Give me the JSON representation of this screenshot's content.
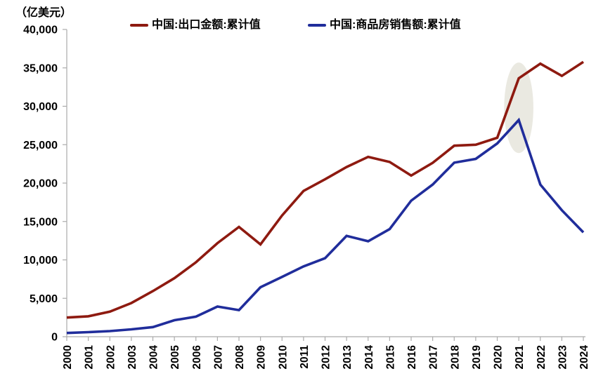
{
  "chart_data": {
    "type": "line",
    "unit_label": "（亿美元）",
    "x": [
      2000,
      2001,
      2002,
      2003,
      2004,
      2005,
      2006,
      2007,
      2008,
      2009,
      2010,
      2011,
      2012,
      2013,
      2014,
      2015,
      2016,
      2017,
      2018,
      2019,
      2020,
      2021,
      2022,
      2023,
      2024
    ],
    "series": [
      {
        "name": "中国:出口金额:累计值",
        "color": "#8E1A10",
        "values": [
          2492,
          2661,
          3256,
          4382,
          5933,
          7620,
          9690,
          12180,
          14290,
          12020,
          15780,
          18980,
          20490,
          22090,
          23420,
          22750,
          20980,
          22630,
          24870,
          25000,
          25900,
          33640,
          35540,
          33950,
          35770
        ]
      },
      {
        "name": "中国:商品房销售额:累计值",
        "color": "#202D9B",
        "values": [
          480,
          590,
          730,
          960,
          1250,
          2150,
          2610,
          3930,
          3460,
          6440,
          7790,
          9150,
          10220,
          13130,
          12430,
          14010,
          17710,
          19810,
          22660,
          23150,
          25160,
          28210,
          19810,
          16470,
          13590
        ]
      }
    ],
    "ylim": [
      0,
      40000
    ],
    "yticks": [
      0,
      5000,
      10000,
      15000,
      20000,
      25000,
      30000,
      35000,
      40000
    ],
    "ytick_labels": [
      "0",
      "5,000",
      "10,000",
      "15,000",
      "20,000",
      "25,000",
      "30,000",
      "35,000",
      "40,000"
    ],
    "grid": false,
    "legend_position": "top",
    "axis_color": "#ababab",
    "text_color": "#000000",
    "annotation": {
      "shape": "ellipse",
      "x_year": 2021,
      "y_center": 29800,
      "y_radius": 5900,
      "x_radius_years": 0.68,
      "color": "#EAE9E1"
    }
  }
}
